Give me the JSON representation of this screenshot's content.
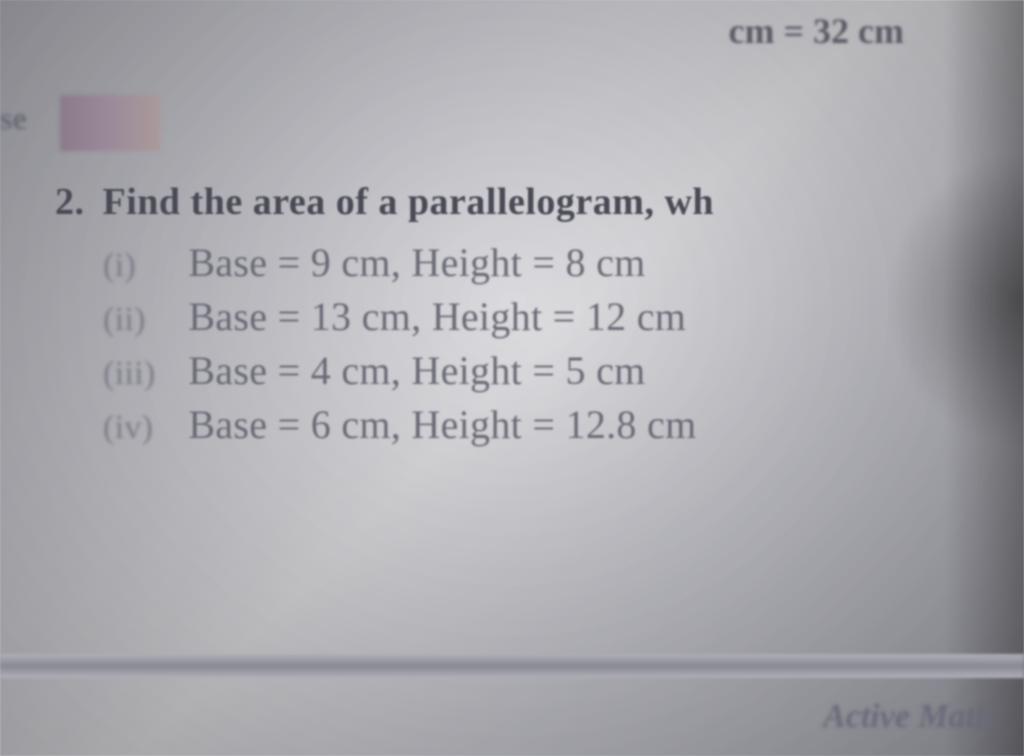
{
  "top_cutoff": "cm = 32 cm",
  "left_fragment": "se",
  "question": {
    "number": "2.",
    "text": "Find the area of a parallelogram, wh"
  },
  "items": [
    {
      "label": "(i)",
      "text": "Base = 9 cm, Height = 8 cm"
    },
    {
      "label": "(ii)",
      "text": "Base = 13 cm, Height = 12 cm"
    },
    {
      "label": "(iii)",
      "text": "Base = 4 cm, Height = 5 cm"
    },
    {
      "label": "(iv)",
      "text": "Base = 6 cm, Height = 12.8 cm"
    }
  ],
  "footer": "Active Math",
  "colors": {
    "text_dark": "#4a4a56",
    "text_mid": "#6a6a76",
    "text_light": "#7a7a86",
    "bg_start": "#a8a8b0",
    "bg_end": "#a0a0aa"
  }
}
